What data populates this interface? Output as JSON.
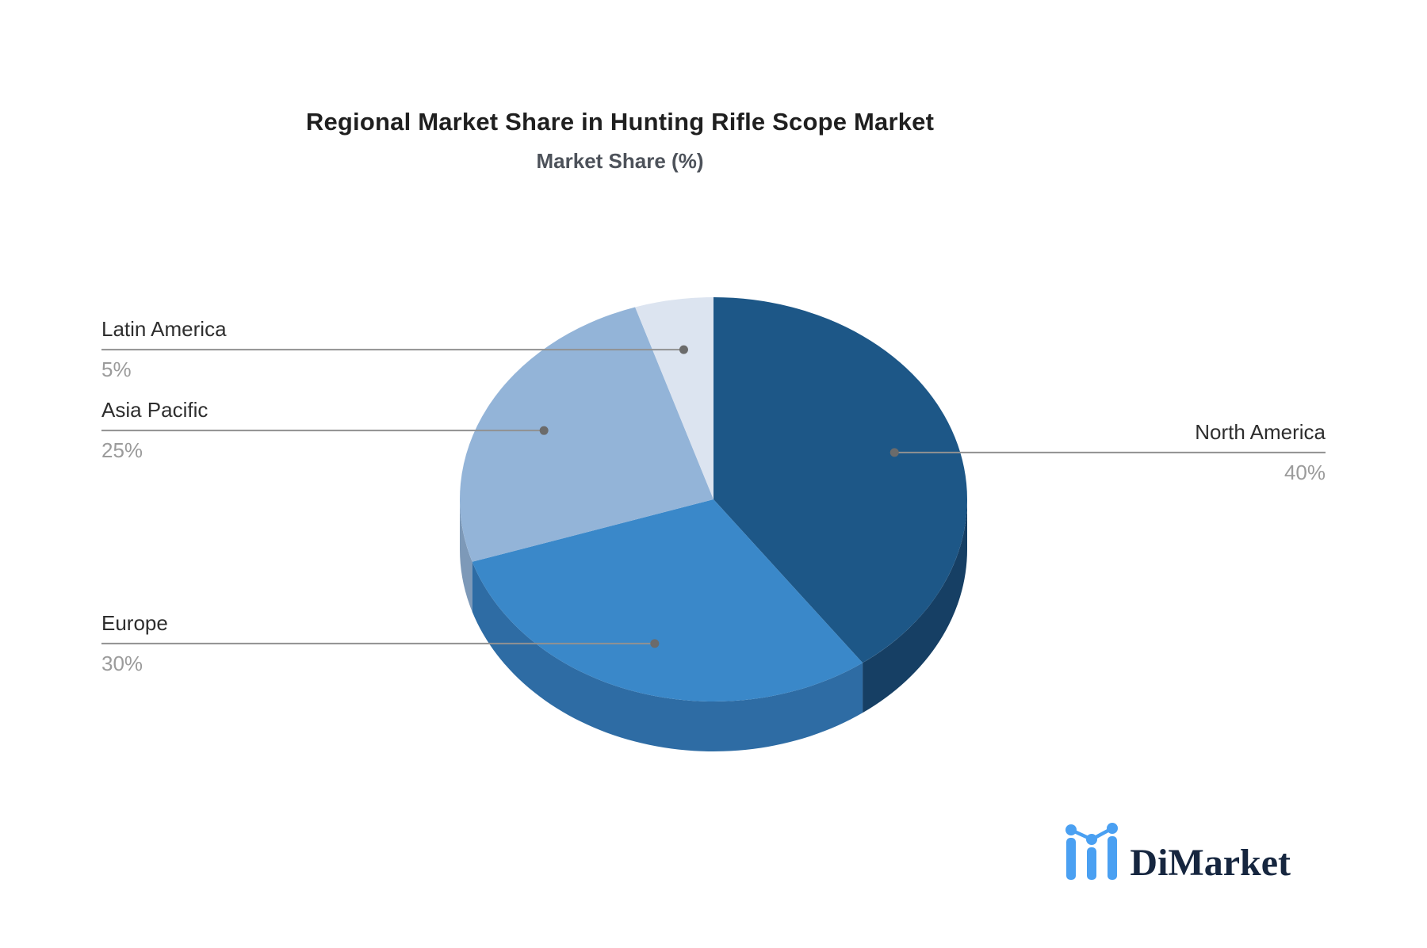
{
  "title": "Regional Market Share in Hunting Rifle Scope Market",
  "subtitle": "Market Share (%)",
  "brand": {
    "name": "DiMarket"
  },
  "chart_data": {
    "type": "pie",
    "title": "Regional Market Share in Hunting Rifle Scope Market",
    "subtitle": "Market Share (%)",
    "unit": "%",
    "style": "3d-pie",
    "start_angle": "12-oclock",
    "direction": "clockwise",
    "legend_position": "none",
    "labels": "leader-lines",
    "leader_line_color": "#919191",
    "leader_dot_color": "#6b6b6b",
    "label_name_color": "#2e2e2e",
    "label_value_color": "#9b9b9b",
    "slices": [
      {
        "label": "North America",
        "value": 40,
        "display": "40%",
        "color": "#1d5787",
        "side_color": "#163f64",
        "label_side": "right"
      },
      {
        "label": "Europe",
        "value": 30,
        "display": "30%",
        "color": "#3a88c9",
        "side_color": "#2e6ca4",
        "label_side": "left"
      },
      {
        "label": "Asia Pacific",
        "value": 25,
        "display": "25%",
        "color": "#93b4d8",
        "side_color": "#7d99b8",
        "label_side": "left"
      },
      {
        "label": "Latin America",
        "value": 5,
        "display": "5%",
        "color": "#dce4f0",
        "side_color": "#c2cfdf",
        "label_side": "left"
      }
    ]
  }
}
